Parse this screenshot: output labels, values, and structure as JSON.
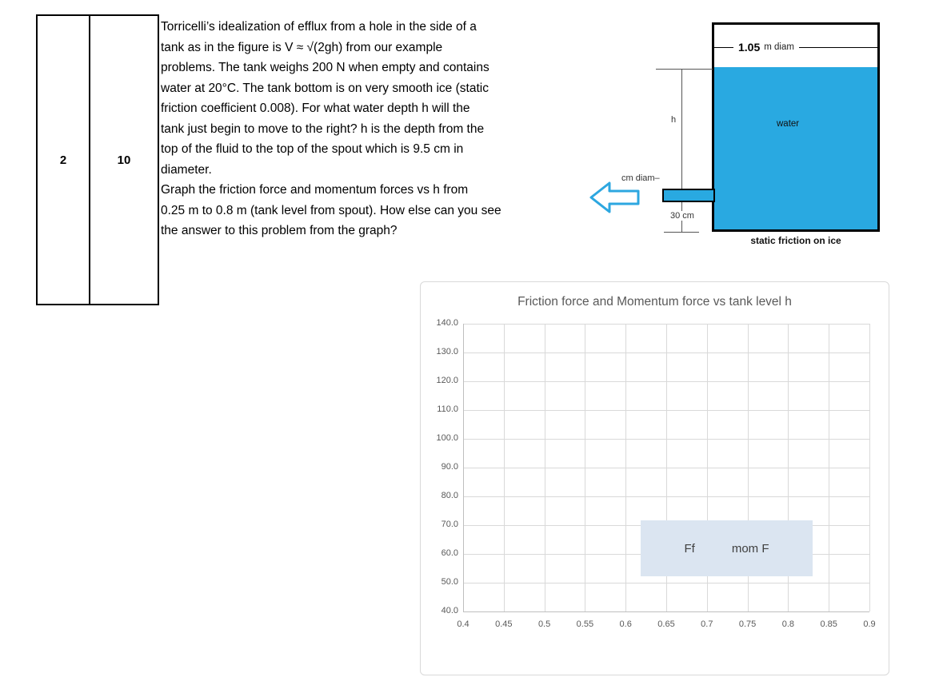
{
  "grading": {
    "problem_number": "2",
    "points": "10"
  },
  "problem": {
    "lines": [
      "Torricelli’s idealization of efflux from a hole in the side of a",
      "tank as in the figure is V ≈ √(2gh) from our example",
      "problems. The tank weighs 200 N when empty and contains",
      "water at 20°C. The tank bottom is on very smooth ice (static",
      "friction coefficient 0.008). For what water depth h will the",
      "tank just begin to move to the right?  h is the depth from the",
      "top of the fluid to the top of the spout which is 9.5 cm in",
      "diameter.",
      "Graph the friction force and momentum forces vs h from",
      "0.25 m to 0.8 m (tank level from spout). How else can you see",
      "the answer to this problem from the graph?"
    ]
  },
  "diagram": {
    "diam_value": "1.05",
    "diam_unit": "m diam",
    "water_label": "water",
    "h_label": "h",
    "spout_diam_label": "cm diam–",
    "spout_height_label": "30 cm",
    "friction_label": "static friction on ice",
    "water_color": "#29a9e1",
    "arrow_color": "#2da7e0"
  },
  "chart_data": {
    "type": "line",
    "title": "Friction force and Momentum force vs tank level h",
    "xlabel": "",
    "ylabel": "",
    "xlim": [
      0.4,
      0.9
    ],
    "ylim": [
      40.0,
      140.0
    ],
    "x_ticks": [
      "0.4",
      "0.45",
      "0.5",
      "0.55",
      "0.6",
      "0.65",
      "0.7",
      "0.75",
      "0.8",
      "0.85",
      "0.9"
    ],
    "y_ticks": [
      "140.0",
      "130.0",
      "120.0",
      "110.0",
      "100.0",
      "90.0",
      "80.0",
      "70.0",
      "60.0",
      "50.0",
      "40.0"
    ],
    "grid": true,
    "legend": {
      "entries": [
        "Ff",
        "mom F"
      ],
      "position": "inside-center-right",
      "fill": "#dbe5f1"
    },
    "series": [
      {
        "name": "Ff",
        "x": [],
        "values": []
      },
      {
        "name": "mom F",
        "x": [],
        "values": []
      }
    ]
  }
}
